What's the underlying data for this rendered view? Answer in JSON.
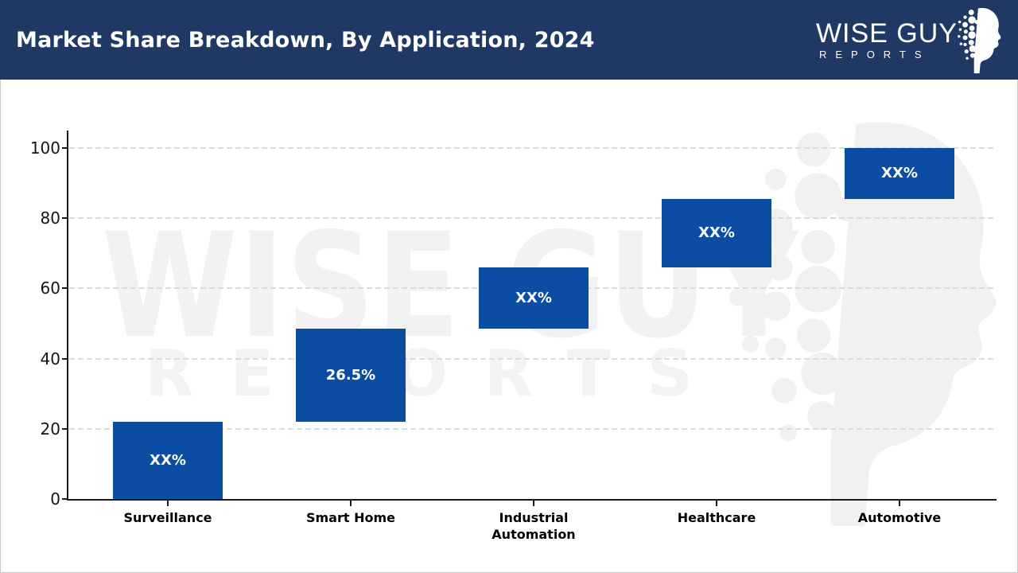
{
  "page": {
    "bg": "#ffffff",
    "border_color": "#c9c9c9"
  },
  "header": {
    "bg": "#1f3864",
    "title": "Market Share Breakdown, By Application, 2024",
    "logo": {
      "line1": "WISE GUY",
      "line2": "REPORTS",
      "icon": "dotted-head-profile"
    }
  },
  "watermark": {
    "line1": "WISE GUY",
    "line2": "REPORTS",
    "icon": "dotted-head-profile"
  },
  "chart_data": {
    "type": "bar",
    "variant": "waterfall",
    "title": "Market Share Breakdown, By Application, 2024",
    "categories": [
      "Surveillance",
      "Smart Home",
      "Industrial\nAutomation",
      "Healthcare",
      "Automotive"
    ],
    "bars": [
      {
        "category": "Surveillance",
        "start": 0,
        "end": 22,
        "label": "XX%"
      },
      {
        "category": "Smart Home",
        "start": 22,
        "end": 48.5,
        "label": "26.5%"
      },
      {
        "category": "Industrial Automation",
        "start": 48.5,
        "end": 66,
        "label": "XX%"
      },
      {
        "category": "Healthcare",
        "start": 66,
        "end": 85.5,
        "label": "XX%"
      },
      {
        "category": "Automotive",
        "start": 85.5,
        "end": 100,
        "label": "XX%"
      }
    ],
    "bar_color": "#0b4da2",
    "bar_label_color": "#ffffff",
    "yticks": [
      0,
      20,
      40,
      60,
      80,
      100
    ],
    "ylim": [
      0,
      104.5
    ],
    "xlabel": "",
    "ylabel": "",
    "grid": {
      "axis": "y",
      "style": "dashed",
      "color": "#dadada"
    },
    "axis_color": "#1a1a1a",
    "legend": "none"
  }
}
